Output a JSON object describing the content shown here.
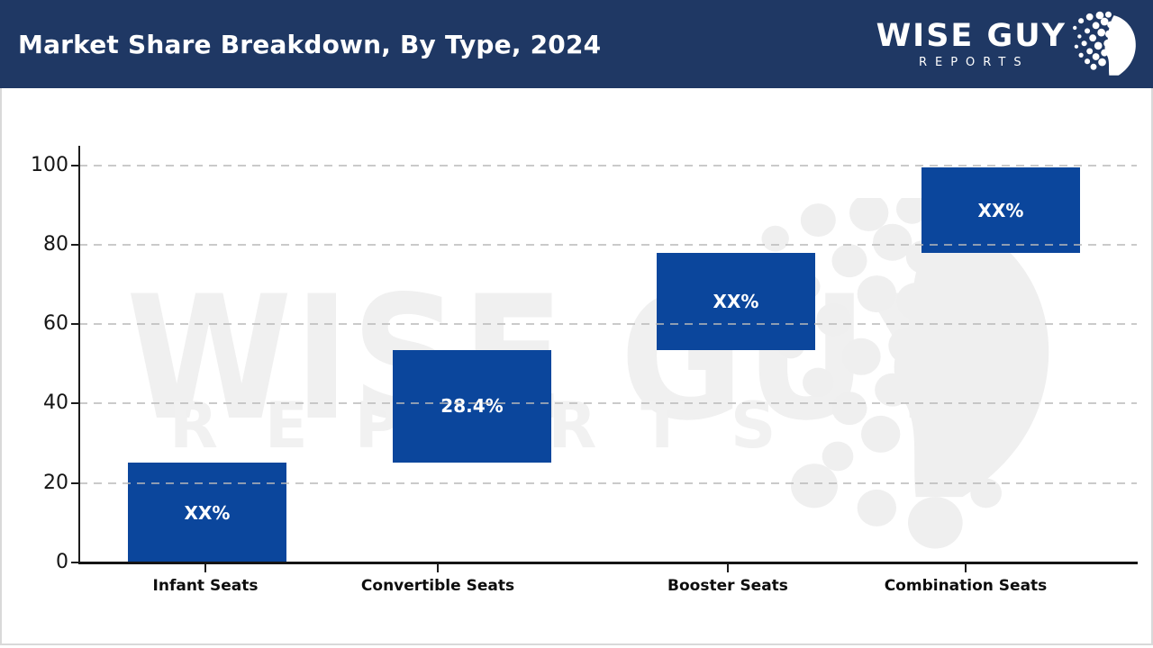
{
  "header": {
    "title": "Market Share Breakdown, By Type, 2024",
    "logo": {
      "line1": "WISE GUY",
      "line2": "REPORTS"
    }
  },
  "watermark": {
    "line1": "WISE GUY",
    "line2": "REPORTS"
  },
  "colors": {
    "header_bg": "#1f3864",
    "bar": "#0b469c",
    "grid": "#bcbcbc",
    "axis": "#1c1c1c",
    "bar_label_text": "#ffffff",
    "border": "#d9d9d9",
    "watermark": "#f0f0f0"
  },
  "chart_data": {
    "type": "bar",
    "variant": "floating-segment-waterfall",
    "title": "Market Share Breakdown, By Type, 2024",
    "categories": [
      "Infant Seats",
      "Convertible Seats",
      "Booster Seats",
      "Combination Seats"
    ],
    "bars": [
      {
        "category": "Infant Seats",
        "start": 0,
        "end": 25.1,
        "height": 25.1,
        "label": "XX%"
      },
      {
        "category": "Convertible Seats",
        "start": 25.1,
        "end": 53.5,
        "height": 28.4,
        "label": "28.4%"
      },
      {
        "category": "Booster Seats",
        "start": 53.5,
        "end": 77.9,
        "height": 24.4,
        "label": "XX%"
      },
      {
        "category": "Combination Seats",
        "start": 77.9,
        "end": 99.4,
        "height": 21.5,
        "label": "XX%"
      }
    ],
    "yticks": [
      0,
      20,
      40,
      60,
      80,
      100
    ],
    "ytick_labels": [
      "0",
      "20",
      "40",
      "60",
      "80",
      "100"
    ],
    "ylim": [
      0,
      105
    ],
    "xlabel": "",
    "ylabel": "",
    "grid": "horizontal dashed, drawn over bars",
    "legend": "none"
  }
}
